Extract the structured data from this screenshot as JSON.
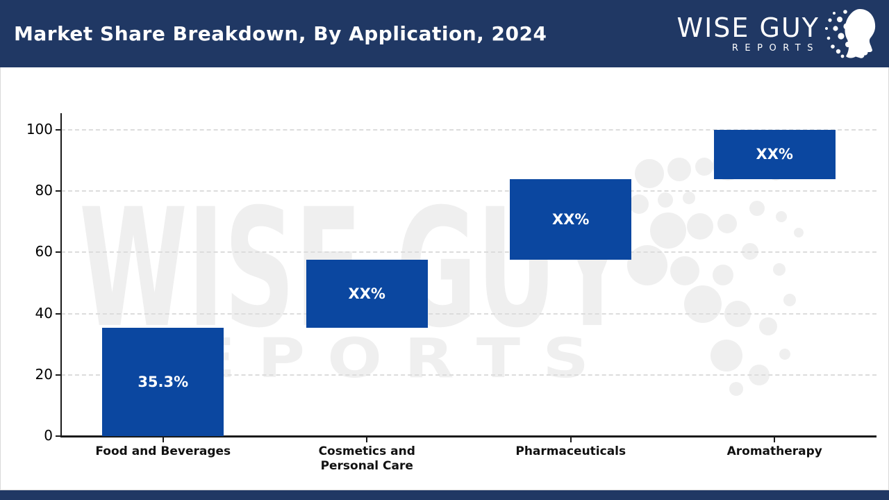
{
  "header": {
    "title": "Market Share Breakdown, By Application, 2024",
    "bg_color": "#203864",
    "logo": {
      "line1": "WISE GUY",
      "line2": "REPORTS",
      "icon": "dotted-face-profile-icon"
    }
  },
  "watermark": {
    "line1": "WISE GUY",
    "line2": "R E P O R T S",
    "icon": "dotted-head-watermark",
    "color": "#efefef"
  },
  "chart_data": {
    "type": "bar",
    "subtype": "waterfall",
    "title": "Market Share Breakdown, By Application, 2024",
    "xlabel": "",
    "ylabel": "",
    "categories": [
      "Food and Beverages",
      "Cosmetics and\nPersonal Care",
      "Pharmaceuticals",
      "Aromatherapy"
    ],
    "segments": [
      {
        "category": "Food and Beverages",
        "start": 0,
        "end": 35.3,
        "label": "35.3%"
      },
      {
        "category": "Cosmetics and Personal Care",
        "start": 35.3,
        "end": 57.5,
        "label": "XX%"
      },
      {
        "category": "Pharmaceuticals",
        "start": 57.5,
        "end": 84,
        "label": "XX%"
      },
      {
        "category": "Aromatherapy",
        "start": 84,
        "end": 100,
        "label": "XX%"
      }
    ],
    "ylim": [
      0,
      100
    ],
    "yticks": [
      0,
      20,
      40,
      60,
      80,
      100
    ],
    "grid": "horizontal-dashed",
    "legend": "none",
    "bar_color": "#0b47a0",
    "bar_label_color": "#ffffff",
    "gridline_color": "#dcdcdc",
    "axis_color": "#1a1a1a"
  },
  "footer": {
    "bg_color": "#203864"
  }
}
